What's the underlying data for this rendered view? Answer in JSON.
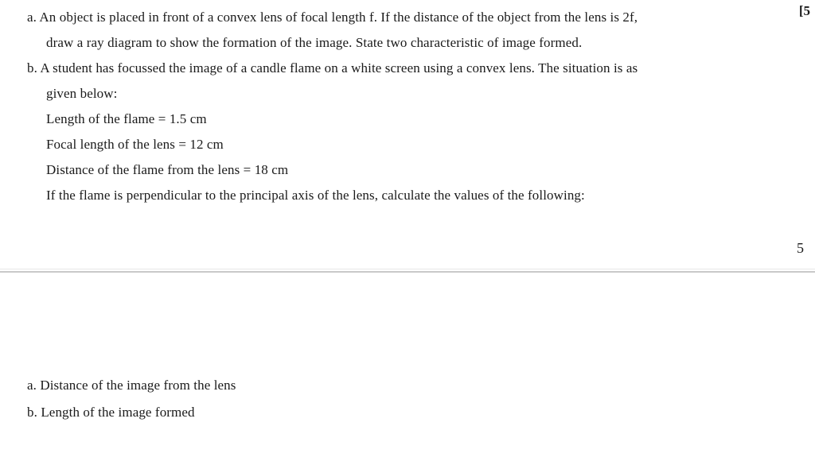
{
  "marks_marker": "[5",
  "page_number": "5",
  "question_a": {
    "label": "a.",
    "line1": "An object is placed in front of a convex lens of focal length f. If the distance of the object from the lens is 2f,",
    "line2": "draw a ray diagram to show the formation of the image. State two characteristic of image formed."
  },
  "question_b": {
    "label": "b.",
    "line1": "A student has focussed the image of a candle flame on a white screen using a convex lens. The situation is as",
    "line2": "given below:",
    "data_lines": [
      "Length of the flame = 1.5 cm",
      "Focal length of the lens = 12 cm",
      "Distance of the flame from the lens = 18 cm"
    ],
    "instruction": "If the flame is perpendicular to the principal axis of the lens, calculate the values of the following:"
  },
  "sub_questions": {
    "a": {
      "label": "a.",
      "text": "Distance of the image from the lens"
    },
    "b": {
      "label": "b.",
      "text": "Length of the image formed"
    }
  }
}
